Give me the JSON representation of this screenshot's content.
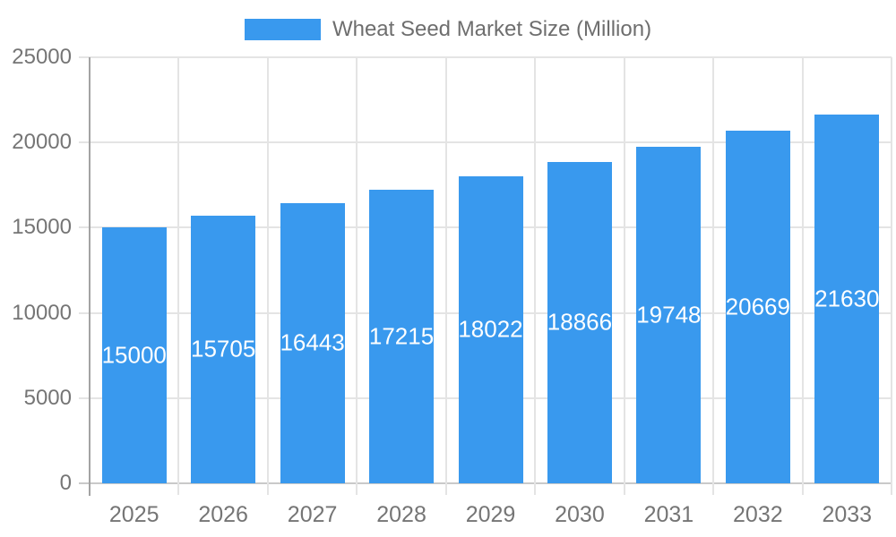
{
  "legend": {
    "label": "Wheat Seed Market Size (Million)"
  },
  "chart_data": {
    "type": "bar",
    "title": "Wheat Seed Market Size (Million)",
    "categories": [
      "2025",
      "2026",
      "2027",
      "2028",
      "2029",
      "2030",
      "2031",
      "2032",
      "2033"
    ],
    "values": [
      15000,
      15705,
      16443,
      17215,
      18022,
      18866,
      19748,
      20669,
      21630
    ],
    "series": [
      {
        "name": "Wheat Seed Market Size (Million)",
        "values": [
          15000,
          15705,
          16443,
          17215,
          18022,
          18866,
          19748,
          20669,
          21630
        ]
      }
    ],
    "xlabel": "",
    "ylabel": "",
    "ylim": [
      0,
      25000
    ],
    "y_ticks": [
      0,
      5000,
      10000,
      15000,
      20000,
      25000
    ],
    "grid": true,
    "legend_position": "top",
    "value_labels_inside_bars": true,
    "colors": {
      "bar": "#3999EE",
      "value_label": "#FFFFFF",
      "axis_label": "#757575",
      "legend_label": "#6E6E6E",
      "gridline": "#E4E4E4",
      "baseline": "#C9C9C9",
      "axis_line": "#A3A3A3",
      "background": "#FFFFFF"
    }
  }
}
